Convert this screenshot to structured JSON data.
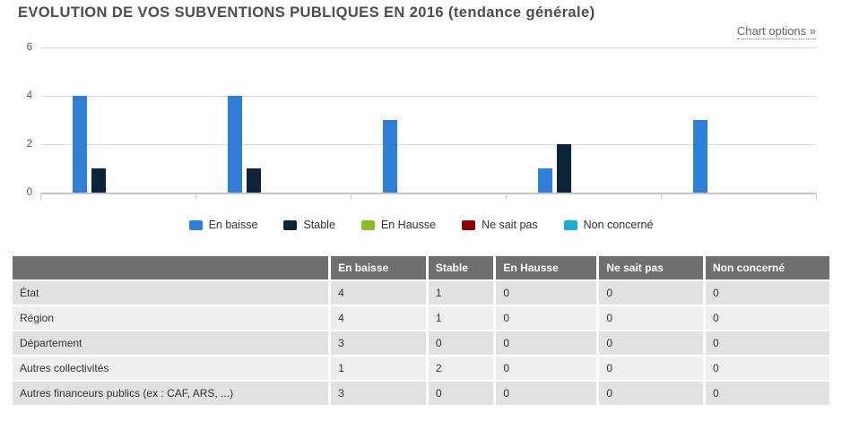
{
  "header": {
    "title": "EVOLUTION DE VOS SUBVENTIONS PUBLIQUES EN 2016 (tendance générale)",
    "chart_options_label": "Chart options »"
  },
  "chart_data": {
    "type": "bar",
    "title": "EVOLUTION DE VOS SUBVENTIONS PUBLIQUES EN 2016 (tendance générale)",
    "categories": [
      "État",
      "Région",
      "Département",
      "Autres collectivités",
      "Autres financeurs publics (ex : CAF, ARS, ...)"
    ],
    "series": [
      {
        "name": "En baisse",
        "color": "#2f7ed8",
        "values": [
          4,
          4,
          3,
          1,
          3
        ]
      },
      {
        "name": "Stable",
        "color": "#0d233a",
        "values": [
          1,
          1,
          0,
          2,
          0
        ]
      },
      {
        "name": "En Hausse",
        "color": "#8bbc21",
        "values": [
          0,
          0,
          0,
          0,
          0
        ]
      },
      {
        "name": "Ne sait pas",
        "color": "#910000",
        "values": [
          0,
          0,
          0,
          0,
          0
        ]
      },
      {
        "name": "Non concerné",
        "color": "#1aadce",
        "values": [
          0,
          0,
          0,
          0,
          0
        ]
      }
    ],
    "xlabel": "",
    "ylabel": "",
    "ylim": [
      0,
      6
    ],
    "yticks": [
      0,
      2,
      4,
      6
    ],
    "grid": true,
    "legend_position": "bottom",
    "x_tick_labels_shown": false
  },
  "table": {
    "columns": [
      "",
      "En baisse",
      "Stable",
      "En Hausse",
      "Ne sait pas",
      "Non concerné"
    ],
    "column_widths_pct": [
      39.3,
      11.8,
      8.1,
      12.5,
      12.9,
      15.4
    ],
    "rows": [
      {
        "label": "État",
        "values": [
          "4",
          "1",
          "0",
          "0",
          "0"
        ]
      },
      {
        "label": "Région",
        "values": [
          "4",
          "1",
          "0",
          "0",
          "0"
        ]
      },
      {
        "label": "Département",
        "values": [
          "3",
          "0",
          "0",
          "0",
          "0"
        ]
      },
      {
        "label": "Autres collectivités",
        "values": [
          "1",
          "2",
          "0",
          "0",
          "0"
        ]
      },
      {
        "label": "Autres financeurs publics (ex : CAF, ARS, ...)",
        "values": [
          "3",
          "0",
          "0",
          "0",
          "0"
        ]
      }
    ]
  }
}
